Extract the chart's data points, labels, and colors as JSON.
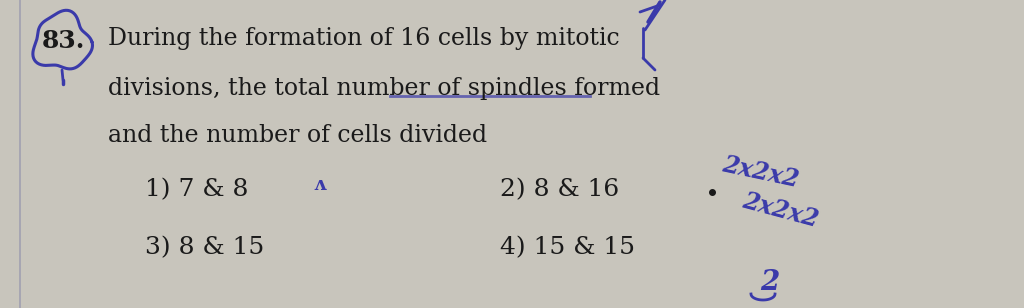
{
  "bg_color": "#c8c5bc",
  "page_color": "#dedad2",
  "text_color": "#1a1a1a",
  "circle_color": "#3a3aaa",
  "annotation_color": "#3a3aaa",
  "question_number": "83.",
  "line1": "During the formation of 16 cells by mitotic",
  "line2": "divisions, the total number of spindles formed",
  "line3": "and the number of cells divided",
  "opt1": "1) 7 & 8",
  "opt2": "2) 8 & 16",
  "opt3": "3) 8 & 15",
  "opt4": "4) 15 & 15",
  "ann1": "2x2x2",
  "ann2": "2x2x2",
  "ann3": "2",
  "figsize": [
    10.24,
    3.08
  ],
  "dpi": 100
}
